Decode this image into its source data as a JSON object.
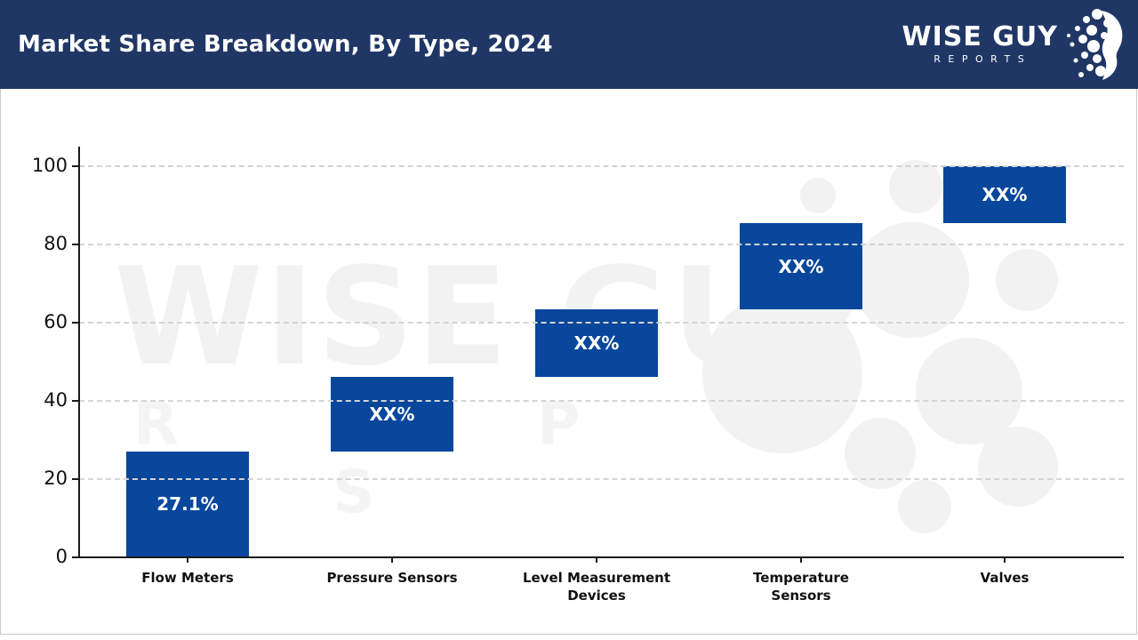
{
  "header": {
    "title": "Market Share Breakdown, By Type, 2024",
    "logo": {
      "line1": "WISE GUY",
      "line2": "REPORTS"
    }
  },
  "watermark": {
    "line1": "WISE GUY",
    "line2": "R E P O R T S"
  },
  "chart_data": {
    "type": "bar",
    "subtype": "floating-segment-waterfall",
    "title": "Market Share Breakdown, By Type, 2024",
    "xlabel": "",
    "ylabel": "",
    "ylim": [
      0,
      105
    ],
    "grid": "horizontal dashed",
    "bar_color": "#08479c",
    "bar_label_color": "#ffffff",
    "y_ticks": [
      0,
      20,
      40,
      60,
      80,
      100
    ],
    "categories": [
      "Flow Meters",
      "Pressure Sensors",
      "Level Measurement\nDevices",
      "Temperature\nSensors",
      "Valves"
    ],
    "segments": [
      {
        "category": "Flow Meters",
        "start": 0,
        "end": 27.1,
        "label": "27.1%"
      },
      {
        "category": "Pressure Sensors",
        "start": 27.1,
        "end": 46.2,
        "label": "XX%"
      },
      {
        "category": "Level Measurement Devices",
        "start": 46.2,
        "end": 63.3,
        "label": "XX%"
      },
      {
        "category": "Temperature Sensors",
        "start": 63.3,
        "end": 85.5,
        "label": "XX%"
      },
      {
        "category": "Valves",
        "start": 85.5,
        "end": 100,
        "label": "XX%"
      }
    ]
  }
}
